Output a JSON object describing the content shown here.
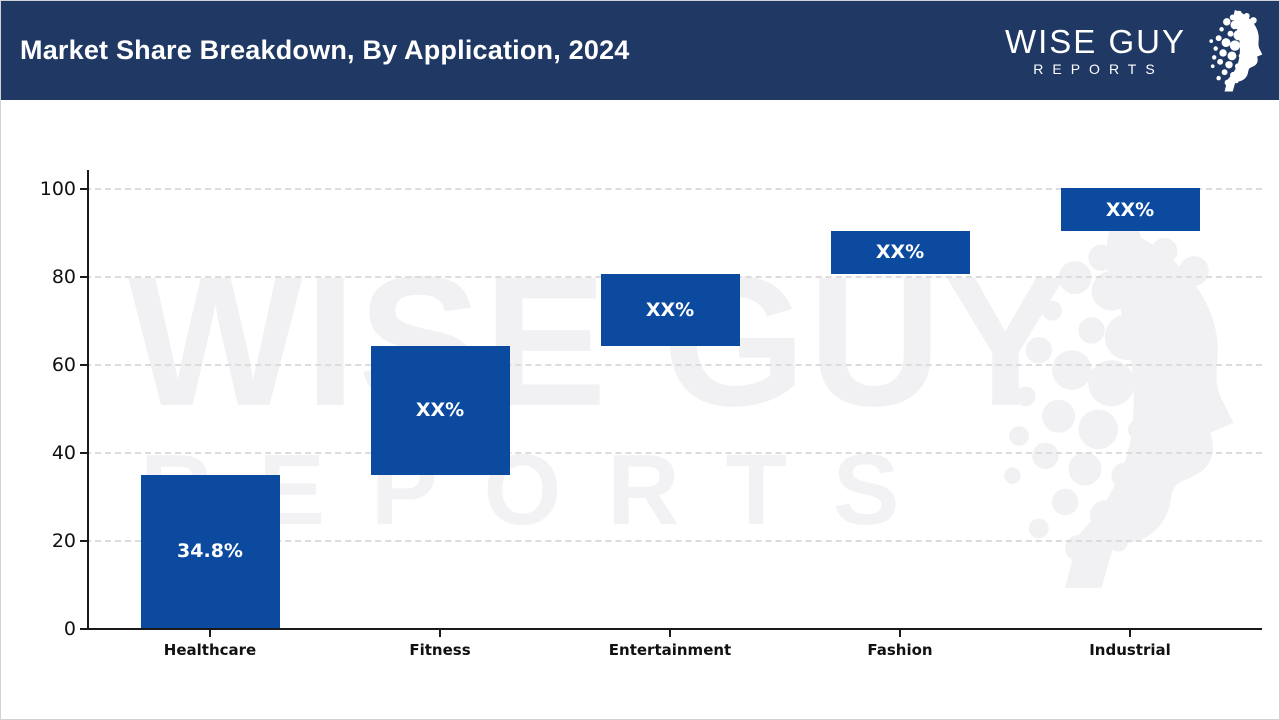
{
  "header": {
    "title": "Market Share Breakdown, By Application, 2024",
    "bg_color": "#1f3864",
    "brand": {
      "line1": "WISE GUY",
      "line2": "REPORTS"
    }
  },
  "watermark": {
    "line1": "WISE GUY",
    "line2": "REPORTS"
  },
  "chart_data": {
    "type": "bar",
    "subtype": "waterfall",
    "title": "Market Share Breakdown, By Application, 2024",
    "categories": [
      "Healthcare",
      "Fitness",
      "Entertainment",
      "Fashion",
      "Industrial"
    ],
    "segments": [
      {
        "category": "Healthcare",
        "start": 0,
        "end": 34.8,
        "label": "34.8%"
      },
      {
        "category": "Fitness",
        "start": 34.8,
        "end": 64.2,
        "label": "XX%"
      },
      {
        "category": "Entertainment",
        "start": 64.2,
        "end": 80.5,
        "label": "XX%"
      },
      {
        "category": "Fashion",
        "start": 80.5,
        "end": 90.2,
        "label": "XX%"
      },
      {
        "category": "Industrial",
        "start": 90.2,
        "end": 100,
        "label": "XX%"
      }
    ],
    "yticks": [
      0,
      20,
      40,
      60,
      80,
      100
    ],
    "ylim": [
      0,
      105
    ],
    "xlabel": "",
    "ylabel": "",
    "grid": true,
    "legend": false,
    "bar_color": "#0b4a9e",
    "bar_label_color": "#ffffff"
  }
}
